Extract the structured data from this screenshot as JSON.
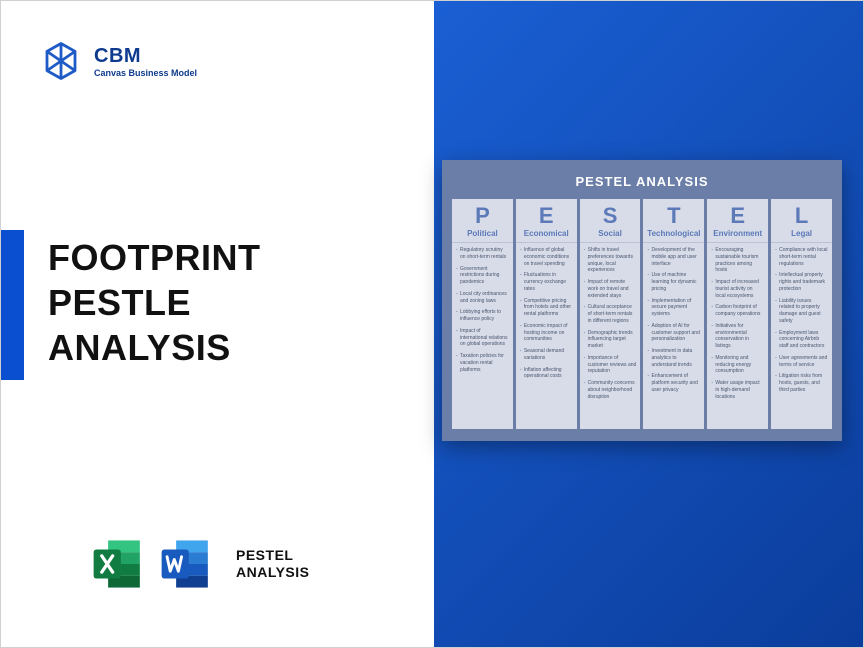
{
  "brand": {
    "name": "CBM",
    "tagline": "Canvas Business Model"
  },
  "title_lines": [
    "FOOTPRINT",
    "PESTLE",
    "ANALYSIS"
  ],
  "office_label_lines": [
    "PESTEL",
    "ANALYSIS"
  ],
  "pestel": {
    "title": "PESTEL ANALYSIS",
    "header_bg": "#6a7ea8",
    "col_bg": "#d7dce8",
    "letter_color": "#5c79b8",
    "columns": [
      {
        "letter": "P",
        "heading": "Political",
        "items": [
          "Regulatory scrutiny on short-term rentals",
          "Government restrictions during pandemics",
          "Local city ordinances and zoning laws",
          "Lobbying efforts to influence policy",
          "Impact of international relations on global operations",
          "Taxation policies for vacation rental platforms"
        ]
      },
      {
        "letter": "E",
        "heading": "Economical",
        "items": [
          "Influence of global economic conditions on travel spending",
          "Fluctuations in currency exchange rates",
          "Competitive pricing from hotels and other rental platforms",
          "Economic impact of hosting income on communities",
          "Seasonal demand variations",
          "Inflation affecting operational costs"
        ]
      },
      {
        "letter": "S",
        "heading": "Social",
        "items": [
          "Shifts in travel preferences towards unique, local experiences",
          "Impact of remote work on travel and extended stays",
          "Cultural acceptance of short-term rentals in different regions",
          "Demographic trends influencing target market",
          "Importance of customer reviews and reputation",
          "Community concerns about neighborhood disruption"
        ]
      },
      {
        "letter": "T",
        "heading": "Technological",
        "items": [
          "Development of the mobile app and user interface",
          "Use of machine learning for dynamic pricing",
          "Implementation of secure payment systems",
          "Adoption of AI for customer support and personalization",
          "Investment in data analytics to understand trends",
          "Enhancement of platform security and user privacy"
        ]
      },
      {
        "letter": "E",
        "heading": "Environment",
        "items": [
          "Encouraging sustainable tourism practices among hosts",
          "Impact of increased tourist activity on local ecosystems",
          "Carbon footprint of company operations",
          "Initiatives for environmental conservation in listings",
          "Monitoring and reducing energy consumption",
          "Water usage impact in high-demand locations"
        ]
      },
      {
        "letter": "L",
        "heading": "Legal",
        "items": [
          "Compliance with local short-term rental regulations",
          "Intellectual property rights and trademark protection",
          "Liability issues related to property damage and guest safety",
          "Employment laws concerning Airbnb staff and contractors",
          "User agreements and terms of service",
          "Litigation risks from hosts, guests, and third parties"
        ]
      }
    ]
  },
  "colors": {
    "gradient_from": "#1a5fd4",
    "gradient_to": "#0b3d9b",
    "accent": "#0b4fd1",
    "excel": {
      "dark": "#107c41",
      "mid": "#21a366",
      "light": "#33c481"
    },
    "word": {
      "dark": "#103f91",
      "mid": "#185abd",
      "light": "#2b7cd3",
      "lighter": "#41a5ee"
    }
  }
}
